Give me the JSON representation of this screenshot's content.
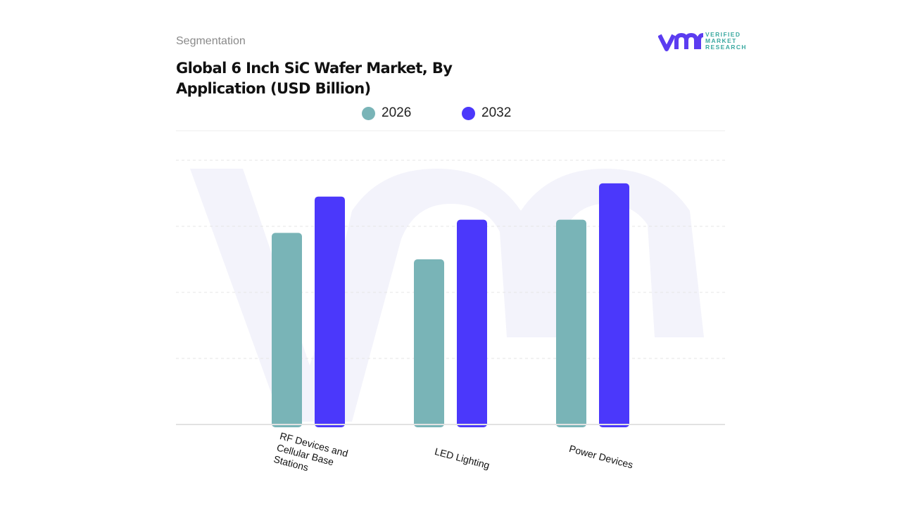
{
  "header": {
    "segment_label": "Segmentation",
    "title": "Global 6 Inch SiC Wafer Market, By Application (USD Billion)"
  },
  "logo": {
    "text": "VERIFIED MARKET RESEARCH",
    "mark": "vmr"
  },
  "colors": {
    "2026": "#79b4b7",
    "2032": "#4b38fb",
    "watermark": "#f3f3fb"
  },
  "chart_data": {
    "type": "bar",
    "title": "Global 6 Inch SiC Wafer Market, By Application (USD Billion)",
    "categories": [
      "RF Devices and Cellular Base Stations",
      "LED Lighting",
      "Power Devices"
    ],
    "series": [
      {
        "name": "2026",
        "values": [
          2.9,
          2.5,
          3.1
        ]
      },
      {
        "name": "2032",
        "values": [
          3.45,
          3.1,
          3.65
        ]
      }
    ],
    "ylim": [
      0,
      4
    ],
    "y_ticks_shown": false,
    "grid": true,
    "legend": "top-center",
    "xlabel": "",
    "ylabel": ""
  }
}
